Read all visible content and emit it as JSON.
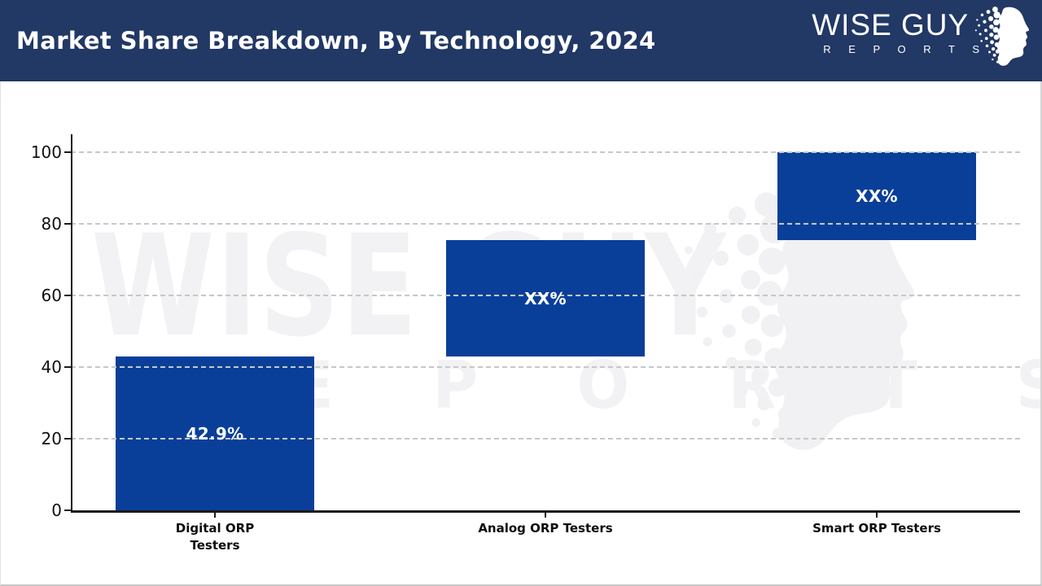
{
  "header": {
    "background_color": "#223865",
    "title": "Market Share Breakdown, By Technology, 2024",
    "logo": {
      "line1": "WISE GUY",
      "line2": "R E P O R T S",
      "head_icon": "dotted-head-profile"
    }
  },
  "watermark": {
    "line1": "WISE GUY",
    "line2": "R E P O R T S"
  },
  "chart_data": {
    "type": "bar",
    "variant": "floating-segment-bars",
    "title": "Market Share Breakdown, By Technology, 2024",
    "categories": [
      "Digital ORP\nTesters",
      "Analog ORP Testers",
      "Smart ORP Testers"
    ],
    "series": [
      {
        "name": "Digital ORP Testers",
        "start": 0,
        "end": 42.9,
        "label": "42.9%"
      },
      {
        "name": "Analog ORP Testers",
        "start": 42.9,
        "end": 75.5,
        "label": "XX%"
      },
      {
        "name": "Smart ORP Testers",
        "start": 75.5,
        "end": 100,
        "label": "XX%"
      }
    ],
    "xlabel": "",
    "ylabel": "",
    "yticks": [
      0,
      20,
      40,
      60,
      80,
      100
    ],
    "ylim": [
      0,
      105
    ],
    "grid": {
      "axis": "y",
      "style": "dashed",
      "color": "#c7c7c7",
      "drawn_above_bars": true
    },
    "bar_color": "#0a3f99",
    "bar_label_color": "#ffffff",
    "axis_color": "#1a1a1a",
    "tick_label_color": "#111111",
    "legend": "none"
  },
  "page": {
    "background": "#ffffff",
    "edge_border_color": "#c9c9c9"
  }
}
